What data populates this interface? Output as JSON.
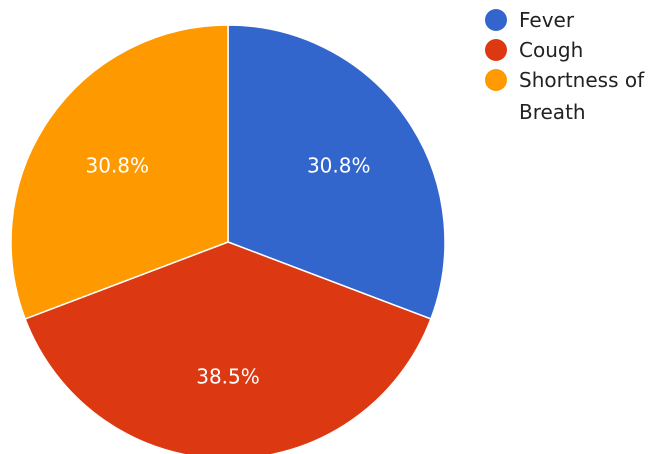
{
  "chart_data": {
    "type": "pie",
    "title": "",
    "slices": [
      {
        "label": "Fever",
        "value": 30.8,
        "display": "30.8%",
        "color": "#3366cc"
      },
      {
        "label": "Cough",
        "value": 38.5,
        "display": "38.5%",
        "color": "#dc3912"
      },
      {
        "label": "Shortness of Breath",
        "label_lines": [
          "Shortness of",
          "Breath"
        ],
        "value": 30.8,
        "display": "30.8%",
        "color": "#ff9900"
      }
    ],
    "legend_position": "right",
    "start_angle": "top",
    "direction": "clockwise"
  }
}
